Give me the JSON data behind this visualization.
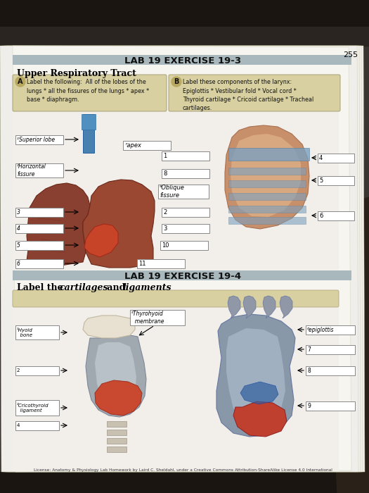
{
  "page_bg": "#3a3530",
  "paper_bg": "#f7f5f0",
  "header_bg": "#a8b8bc",
  "section_bg": "#d8d0a0",
  "page_number": "255",
  "title1": "LAB 19 EXERCISE 19-3",
  "subtitle1": "Upper Respiratory Tract",
  "box_a_text": "Label the following:  All of the lobes of the\nlungs * all the fissures of the lungs * apex *\nbase * diaphragm.",
  "box_b_text": "Label these components of the larynx:\nEpiglottis * Vestibular fold * Vocal cord *\nThyroid cartilage * Cricoid cartilage * Tracheal\ncartilages.",
  "title2": "LAB 19 EXERCISE 19-4",
  "subtitle2_plain": "Label the ",
  "subtitle2_bold": "Cartilages",
  "subtitle2_plain2": " and ",
  "subtitle2_bold2": "Ligaments",
  "license_text": "License: Anatomy & Physiology Lab Homework by Laird C. Sheldahl, under a Creative Commons Attribution-ShareAlike License 4.0 International",
  "white": "#ffffff",
  "black": "#000000",
  "box_border": "#888888"
}
